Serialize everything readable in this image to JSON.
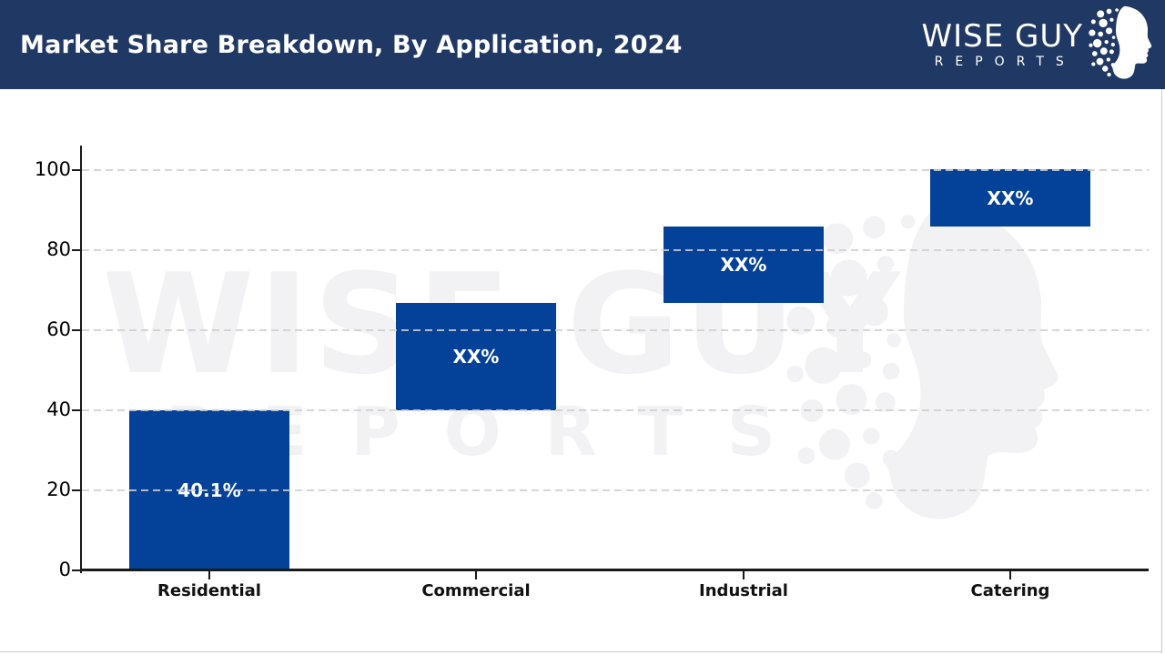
{
  "header": {
    "title": "Market Share Breakdown, By Application, 2024",
    "logo": {
      "name_line": "WISE GUY",
      "sub_line": "REPORTS"
    }
  },
  "watermark": {
    "line1": "WISE GUY",
    "line2": "REPORTS"
  },
  "chart_data": {
    "type": "bar",
    "subtype": "floating-segment-waterfall",
    "title": "Market Share Breakdown, By Application, 2024",
    "categories": [
      "Residential",
      "Commercial",
      "Industrial",
      "Catering"
    ],
    "segments": [
      {
        "category": "Residential",
        "start": 0,
        "end": 40.1,
        "label": "40.1%"
      },
      {
        "category": "Commercial",
        "start": 40.1,
        "end": 66.8,
        "label": "XX%"
      },
      {
        "category": "Industrial",
        "start": 66.8,
        "end": 85.8,
        "label": "XX%"
      },
      {
        "category": "Catering",
        "start": 85.8,
        "end": 100.3,
        "label": "XX%"
      }
    ],
    "ylabel": "",
    "xlabel": "",
    "yticks": [
      0,
      20,
      40,
      60,
      80,
      100
    ],
    "ylim": [
      0,
      106
    ],
    "grid": {
      "horizontal": true,
      "style": "dashed"
    },
    "legend": "none",
    "colors": {
      "bar": "#04429a",
      "bar_label": "#ffffff",
      "header_bg": "#203864",
      "watermark": "#f2f2f4",
      "grid_line": "#cfcfcf",
      "axis": "#1a1a1a"
    }
  }
}
